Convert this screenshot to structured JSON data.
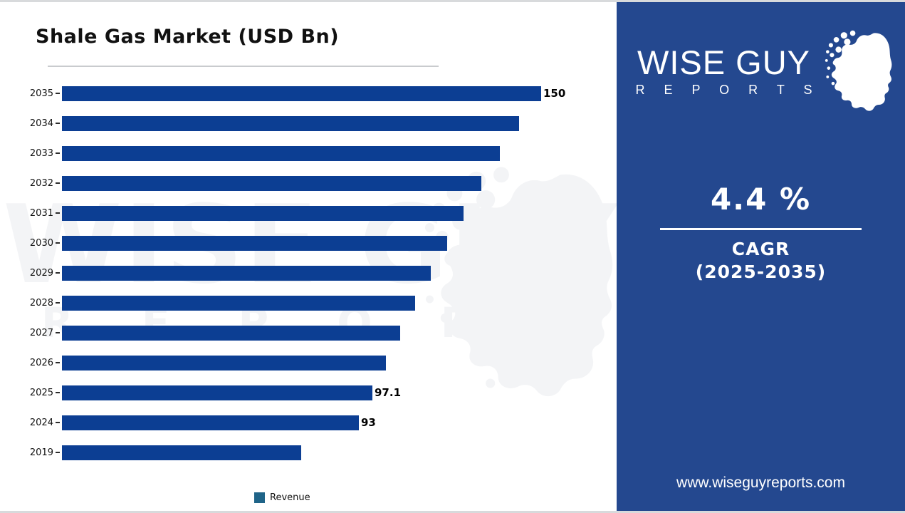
{
  "chart": {
    "title": "Shale Gas Market (USD Bn)",
    "legend_label": "Revenue"
  },
  "chart_data": {
    "type": "bar",
    "orientation": "horizontal",
    "title": "Shale Gas Market (USD Bn)",
    "xlabel": "",
    "ylabel": "",
    "value_unit": "USD Bn",
    "xlim": [
      0,
      167
    ],
    "grid": false,
    "legend": [
      "Revenue"
    ],
    "legend_position": "bottom",
    "categories": [
      "2035",
      "2034",
      "2033",
      "2032",
      "2031",
      "2030",
      "2029",
      "2028",
      "2027",
      "2026",
      "2025",
      "2024",
      "2019"
    ],
    "series": [
      {
        "name": "Revenue",
        "values": [
          150,
          143.2,
          137.1,
          131.3,
          125.8,
          120.5,
          115.4,
          110.5,
          105.8,
          101.4,
          97.1,
          93,
          74.9
        ]
      }
    ],
    "data_labels": [
      "150",
      "",
      "",
      "",
      "",
      "",
      "",
      "",
      "",
      "",
      "97.1",
      "93",
      ""
    ]
  },
  "watermark": {
    "line1": "WISE GUY",
    "line2": "R E P O R T S"
  },
  "brand": {
    "name": "WISE GUY",
    "sub": "R E P O R T S",
    "website": "www.wiseguyreports.com"
  },
  "cagr": {
    "value": "4.4 %",
    "label": "CAGR",
    "range": "(2025-2035)"
  },
  "colors": {
    "bar": "#0C3E93",
    "panel": "#24488F",
    "legend_swatch": "#1F6488",
    "title_text": "#111111",
    "watermark": "#F3F4F6",
    "edge_strip": "#D8DADC"
  },
  "icons": {
    "logo_head": "dotted-head-profile-icon",
    "watermark_head": "head-profile-watermark"
  }
}
